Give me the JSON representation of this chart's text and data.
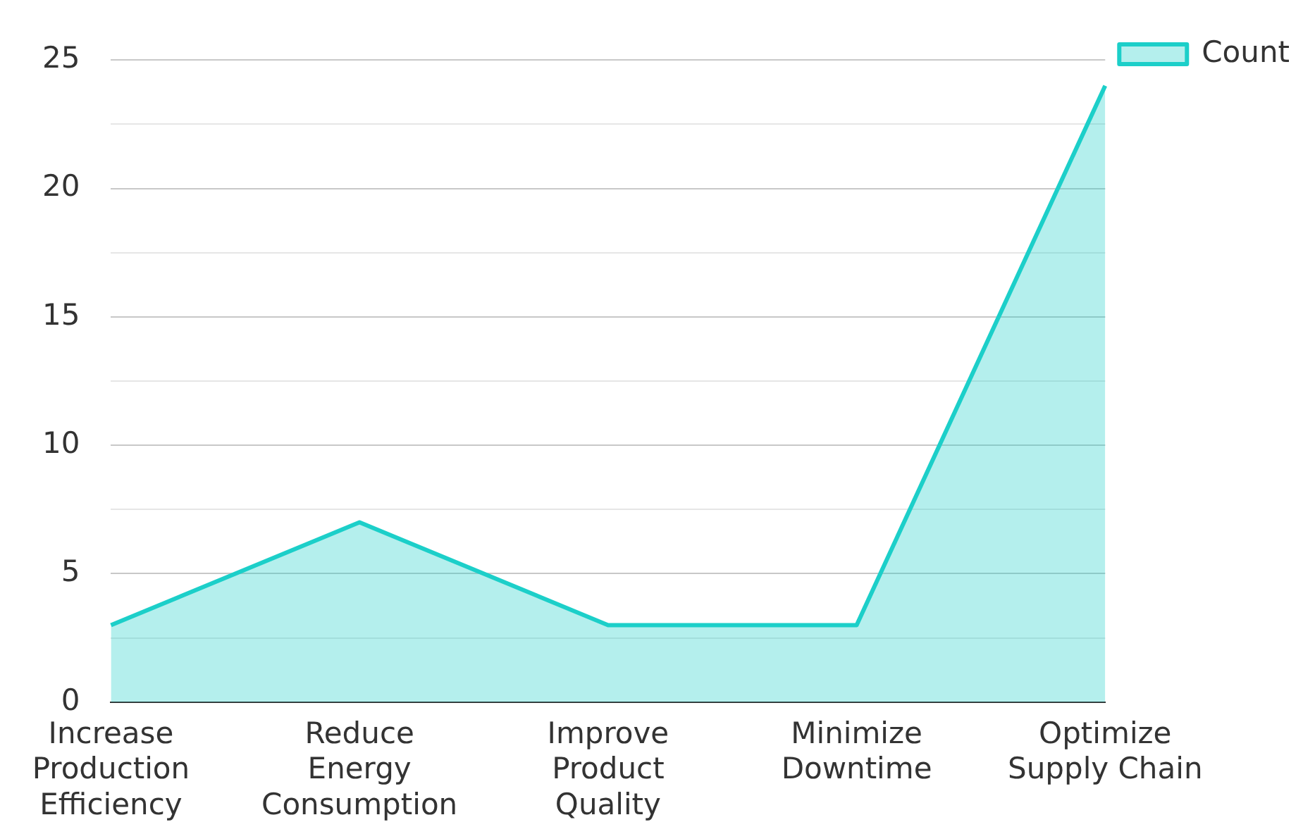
{
  "chart_data": {
    "type": "area",
    "categories": [
      "Increase Production Efficiency",
      "Reduce Energy Consumption",
      "Improve Product Quality",
      "Minimize Downtime",
      "Optimize Supply Chain"
    ],
    "series": [
      {
        "name": "Count",
        "color": "#1ccfc9",
        "values": [
          3,
          7,
          3,
          3,
          24
        ]
      }
    ],
    "ylim": [
      0,
      25
    ],
    "yticks": [
      0,
      {
        "value": 2.5,
        "label": null
      },
      5,
      {
        "value": 7.5,
        "label": null
      },
      10,
      {
        "value": 12.5,
        "label": null
      },
      15,
      {
        "value": 17.5,
        "label": null
      },
      20,
      {
        "value": 22.5,
        "label": null
      },
      25
    ],
    "grid": "y",
    "legend": "top right"
  }
}
